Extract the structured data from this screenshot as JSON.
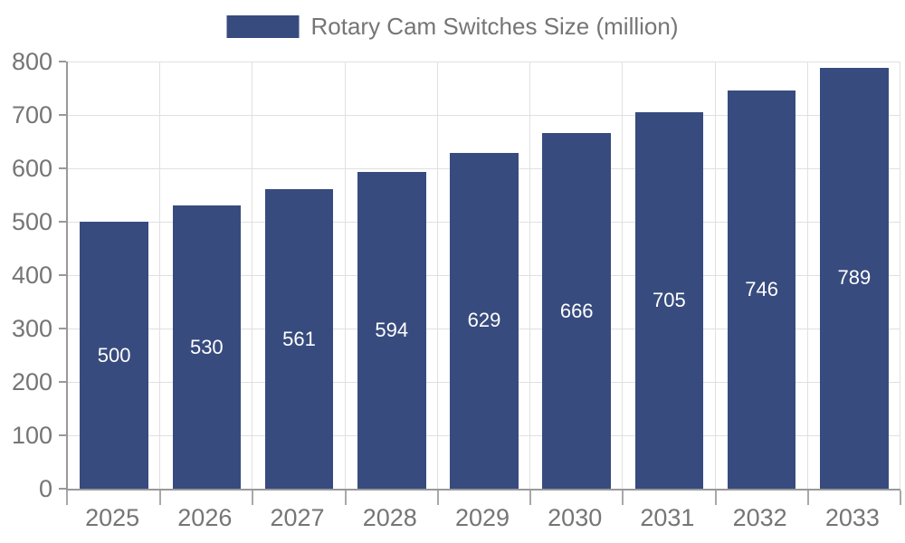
{
  "legend": {
    "label": "Rotary Cam Switches Size (million)",
    "swatch_color": "#374B7E"
  },
  "chart_data": {
    "type": "bar",
    "title": "Rotary Cam Switches Size (million)",
    "categories": [
      "2025",
      "2026",
      "2027",
      "2028",
      "2029",
      "2030",
      "2031",
      "2032",
      "2033"
    ],
    "values": [
      500,
      530,
      561,
      594,
      629,
      666,
      705,
      746,
      789
    ],
    "xlabel": "",
    "ylabel": "",
    "ylim": [
      0,
      800
    ],
    "ytick_step": 100,
    "ytick_labels": [
      "0",
      "100",
      "200",
      "300",
      "400",
      "500",
      "600",
      "700",
      "800"
    ],
    "grid": true,
    "legend_position": "top-center",
    "value_labels": "inside-center",
    "colors": {
      "bar": "#374B7E",
      "value_label": "#FFFFFF",
      "axis_text": "#757575",
      "gridline": "#E0E0E0",
      "axis_line": "#999999"
    }
  }
}
